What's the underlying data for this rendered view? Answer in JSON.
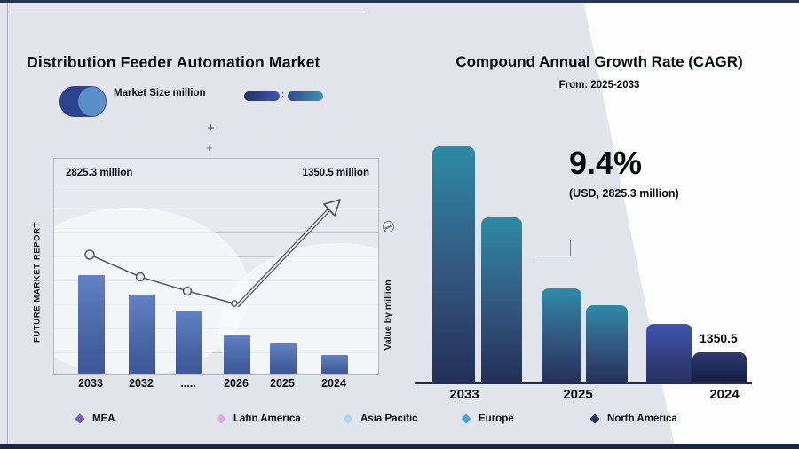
{
  "page": {
    "background_color": "#e2e4ec",
    "edge_bar_color": "#1b2544"
  },
  "decor": {
    "plus": "+"
  },
  "left_panel": {
    "title": "Distribution Feeder Automation Market",
    "market_size_label": "Market Size million",
    "pill_separator": ":",
    "icons": [
      "cylinder-icon",
      "pill-icon-dark",
      "pill-icon-teal",
      "plus-icon",
      "circle-minus-icon",
      "growth-arrow-icon"
    ],
    "chart": {
      "top_left_value": "2825.3 million",
      "top_right_value": "1350.5 million",
      "side_watermark": "FUTURE MARKET REPORT",
      "ylabel": "Value by million",
      "x_labels": [
        "2033",
        "2032",
        ".....",
        "2026",
        "2025",
        "2024"
      ]
    }
  },
  "right_panel": {
    "title": "Compound Annual Growth Rate (CAGR)",
    "subtitle": "From: 2025-2033",
    "cagr_value": "9.4%",
    "cagr_note": "(USD, 2825.3 million)",
    "bar_value_label": "1350.5",
    "x_labels": [
      "2033",
      "2025",
      "2024"
    ]
  },
  "region_legend": [
    {
      "label": "MEA",
      "color": "#7a5fc5"
    },
    {
      "label": "Latin America",
      "color": "#d9abdb"
    },
    {
      "label": "Asia Pacific",
      "color": "#abd7ec"
    },
    {
      "label": "Europe",
      "color": "#4aa3dc"
    },
    {
      "label": "North America",
      "color": "#273260"
    }
  ],
  "chart_data": [
    {
      "type": "bar",
      "title": "Distribution Feeder Automation Market - Market Size million",
      "categories": [
        "2033",
        "2032",
        ".....",
        "2026",
        "2025",
        "2024"
      ],
      "values_relative": [
        100,
        80,
        64,
        40,
        31,
        20
      ],
      "labeled_points": {
        "2033": 2825.3,
        "2024": 1350.5
      },
      "unit": "million USD",
      "ylabel": "Value by million",
      "grid": true,
      "annotations": [
        "declining trend line with circular markers",
        "upward growth arrow toward 2825.3 million"
      ]
    },
    {
      "type": "bar",
      "title": "Compound Annual Growth Rate (CAGR) From: 2025-2033",
      "cagr_percent": 9.4,
      "base_value": 2825.3,
      "unit": "million USD",
      "categories": [
        "2033",
        "2025",
        "2024"
      ],
      "series": [
        {
          "name": "pair-bar-1",
          "values_relative": [
            100,
            40,
            25
          ]
        },
        {
          "name": "pair-bar-2",
          "values_relative": [
            70,
            33,
            13
          ]
        }
      ],
      "labeled_points": {
        "2024": 1350.5
      },
      "grid": false,
      "legend_position": "bottom"
    }
  ]
}
